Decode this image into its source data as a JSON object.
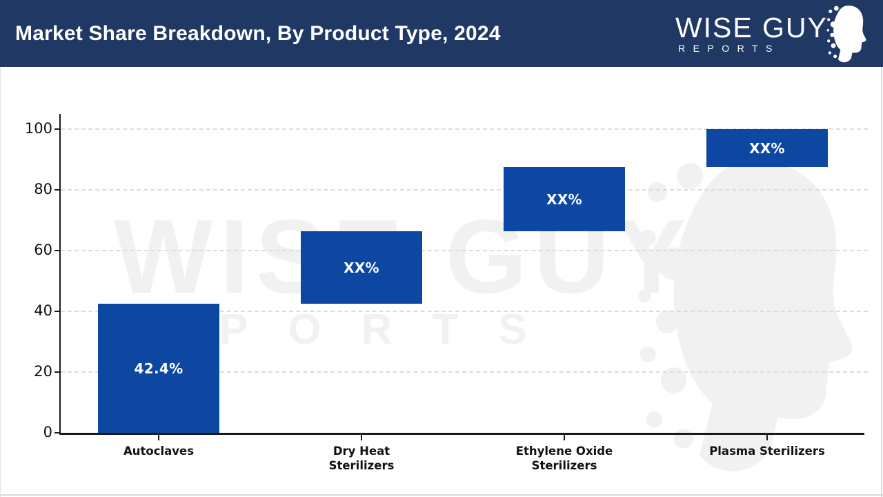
{
  "header": {
    "title": "Market Share Breakdown, By Product Type, 2024",
    "brand": {
      "line1": "WISE GUY",
      "line2": "REPORTS"
    },
    "bg_color": "#203864",
    "text_color": "#ffffff"
  },
  "watermark": {
    "line1": "WISE GUY",
    "line2": "PORTS",
    "color": "#f1f1f1"
  },
  "icons": {
    "brand_face": "wiseguy-dotted-face-icon",
    "watermark_face": "watermark-dotted-face-icon"
  },
  "chart_data": {
    "type": "bar",
    "subtype": "floating-waterfall",
    "title": "Market Share Breakdown, By Product Type, 2024",
    "categories": [
      "Autoclaves",
      "Dry Heat Sterilizers",
      "Ethylene Oxide Sterilizers",
      "Plasma Sterilizers"
    ],
    "category_lines": [
      [
        "Autoclaves"
      ],
      [
        "Dry Heat",
        "Sterilizers"
      ],
      [
        "Ethylene Oxide",
        "Sterilizers"
      ],
      [
        "Plasma Sterilizers"
      ]
    ],
    "segments": [
      {
        "category": "Autoclaves",
        "start": 0,
        "end": 42.4,
        "label": "42.4%"
      },
      {
        "category": "Dry Heat Sterilizers",
        "start": 42.4,
        "end": 66.3,
        "label": "XX%"
      },
      {
        "category": "Ethylene Oxide Sterilizers",
        "start": 66.3,
        "end": 87.5,
        "label": "XX%"
      },
      {
        "category": "Plasma Sterilizers",
        "start": 87.5,
        "end": 100,
        "label": "XX%"
      }
    ],
    "xlabel": "",
    "ylabel": "",
    "ylim": [
      0,
      105
    ],
    "yticks": [
      0,
      20,
      40,
      60,
      80,
      100
    ],
    "grid": "horizontal-dashed",
    "legend": "none",
    "bar_color": "#0d47a1",
    "bar_label_color": "#ffffff",
    "grid_color": "#dcdcdc",
    "axis_color": "#1a1a1a"
  }
}
